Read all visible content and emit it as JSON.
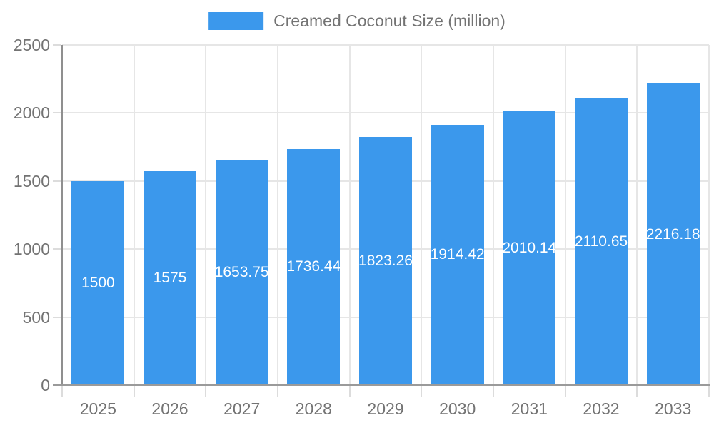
{
  "legend": {
    "label": "Creamed Coconut Size (million)",
    "swatch_color": "#3b98ec"
  },
  "chart_data": {
    "type": "bar",
    "title": "",
    "xlabel": "",
    "ylabel": "",
    "categories": [
      "2025",
      "2026",
      "2027",
      "2028",
      "2029",
      "2030",
      "2031",
      "2032",
      "2033"
    ],
    "series": [
      {
        "name": "Creamed Coconut Size (million)",
        "values": [
          1500,
          1575,
          1653.75,
          1736.44,
          1823.26,
          1914.42,
          2010.14,
          2110.65,
          2216.18
        ],
        "value_labels": [
          "1500",
          "1575",
          "1653.75",
          "1736.44",
          "1823.26",
          "1914.42",
          "2010.14",
          "2110.65",
          "2216.18"
        ],
        "color": "#3b98ec"
      }
    ],
    "ylim": [
      0,
      2500
    ],
    "yticks": [
      0,
      500,
      1000,
      1500,
      2000,
      2500
    ],
    "grid": true,
    "legend_position": "top",
    "value_label_color": "#ffffff"
  },
  "colors": {
    "bar": "#3b98ec",
    "axis_text": "#737373",
    "gridline": "#e6e6e6",
    "axis_line": "#9a9a9a",
    "background": "#ffffff"
  }
}
